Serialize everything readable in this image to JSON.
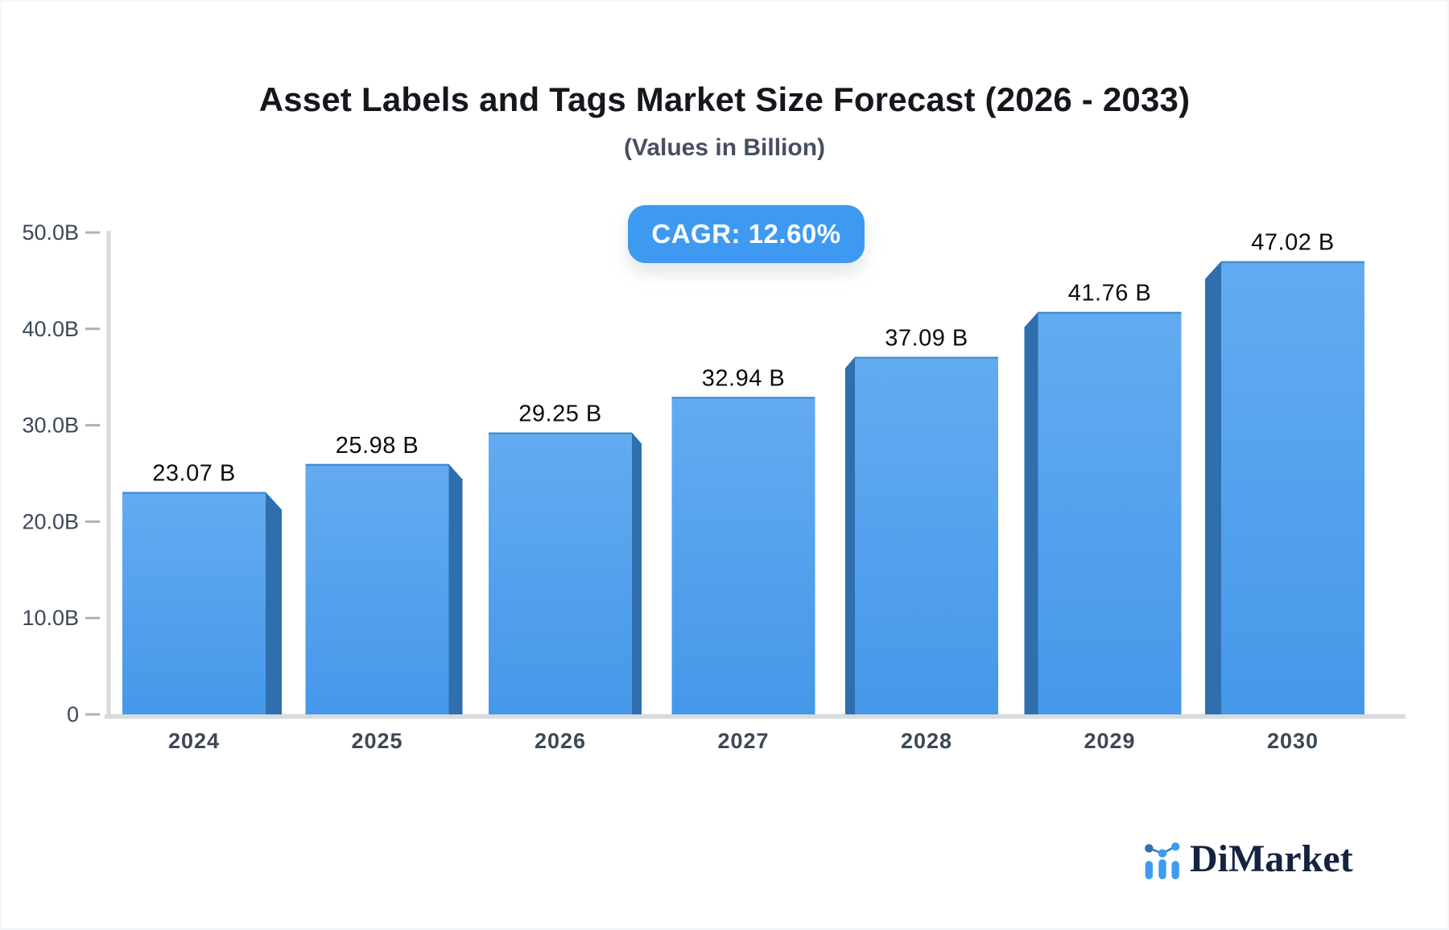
{
  "chart_data": {
    "type": "bar",
    "title": "Asset Labels and Tags Market Size Forecast (2026 - 2033)",
    "subtitle": "(Values in Billion)",
    "cagr_label": "CAGR: 12.60%",
    "categories": [
      "2024",
      "2025",
      "2026",
      "2027",
      "2028",
      "2029",
      "2030"
    ],
    "values": [
      23.07,
      25.98,
      29.25,
      32.94,
      37.09,
      41.76,
      47.02
    ],
    "value_labels": [
      "23.07 B",
      "25.98 B",
      "29.25 B",
      "32.94 B",
      "37.09 B",
      "41.76 B",
      "47.02 B"
    ],
    "ylim": [
      0,
      50
    ],
    "y_tick_values": [
      0,
      10,
      20,
      30,
      40,
      50
    ],
    "y_tick_labels": [
      "0",
      "10.0B",
      "20.0B",
      "30.0B",
      "40.0B",
      "50.0B"
    ],
    "grid": "off",
    "legend": "none",
    "colors": {
      "accent": "#3e9af0",
      "bar_top": "#63abf1",
      "bar_bottom": "#4598e9",
      "bar_side": "#2f6fae",
      "bar_edge": "#3e86c9",
      "axis_line": "#d8dbde",
      "tick_mark": "#aab1b9",
      "tick_label": "#3c4857",
      "value_label": "#0b0c0e"
    }
  },
  "logo": {
    "text": "DiMarket",
    "icon": "mini-bar-chart-icon",
    "icon_color": "#3f9bf1",
    "text_color": "#152340"
  }
}
